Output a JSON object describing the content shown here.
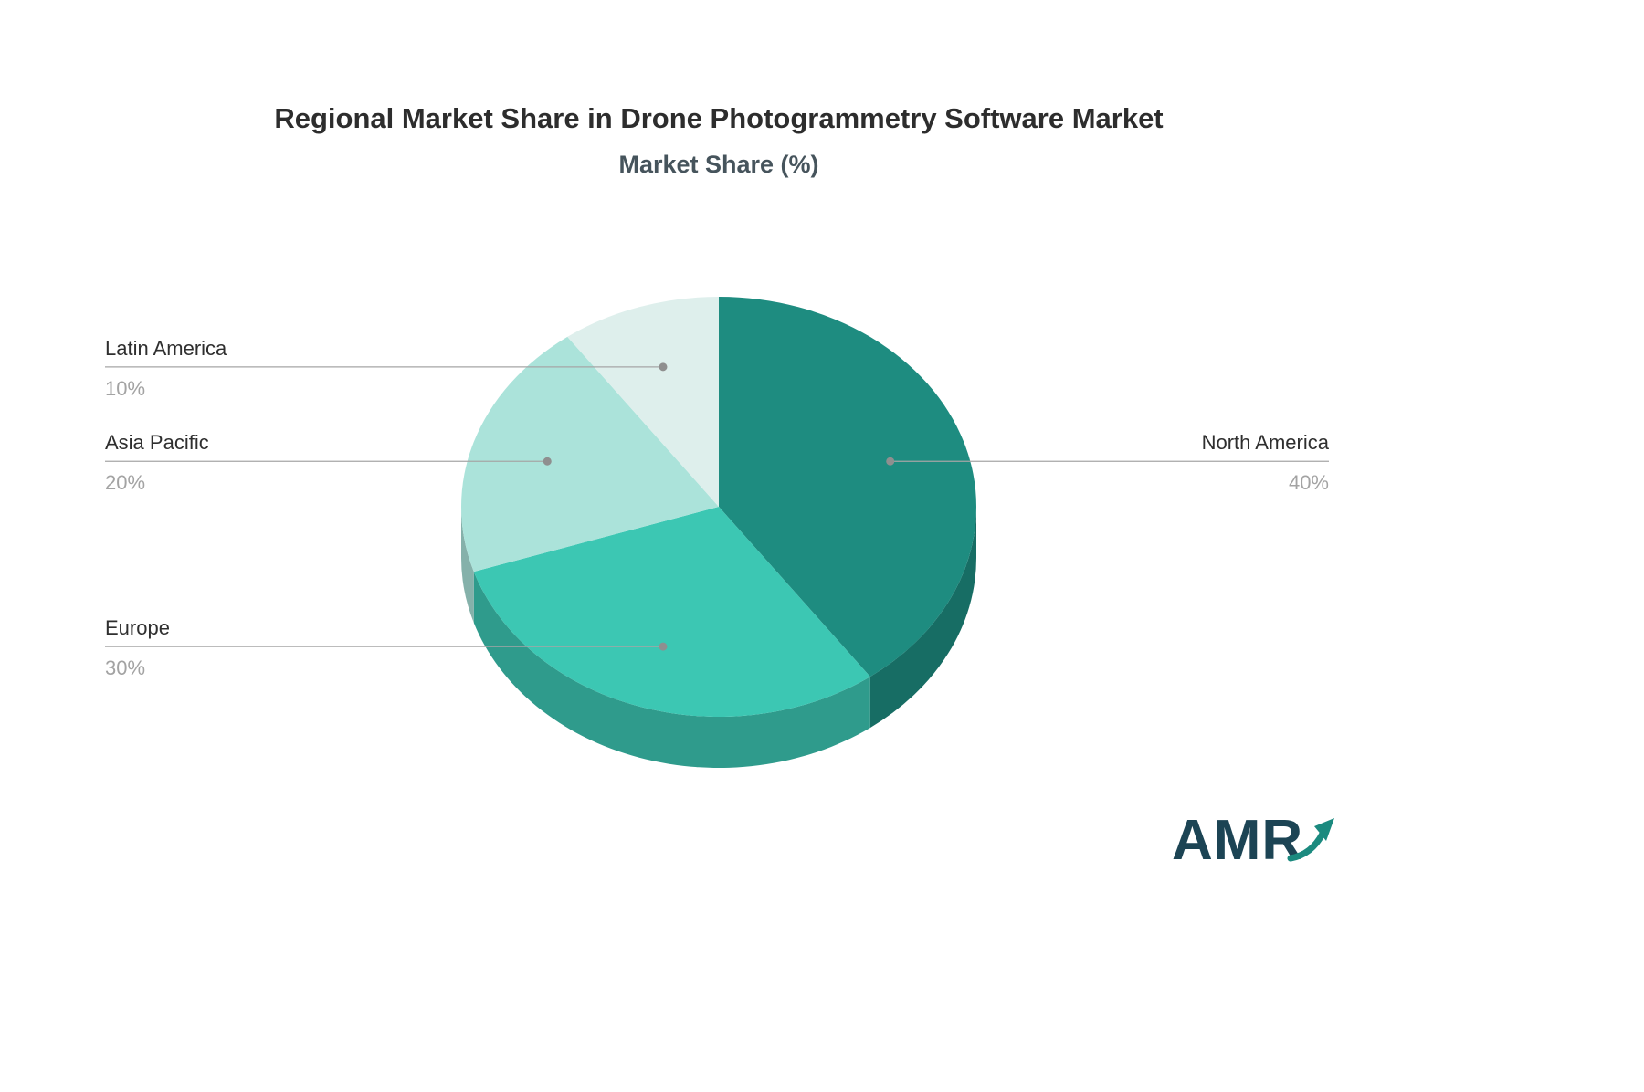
{
  "chart_data": {
    "type": "pie",
    "effect": "3d",
    "title": "Regional Market Share in Drone Photogrammetry Software Market",
    "subtitle": "Market Share (%)",
    "unit": "%",
    "legend_position": "none",
    "slices": [
      {
        "label": "North America",
        "value": 40,
        "pct": "40%",
        "color": "#1e8c80",
        "side": "right"
      },
      {
        "label": "Europe",
        "value": 30,
        "pct": "30%",
        "color": "#3cc7b3",
        "side": "left"
      },
      {
        "label": "Asia Pacific",
        "value": 20,
        "pct": "20%",
        "color": "#abe3da",
        "side": "left"
      },
      {
        "label": "Latin America",
        "value": 10,
        "pct": "10%",
        "color": "#deefec",
        "side": "left"
      }
    ],
    "label_style": {
      "name_color": "#2f2f2f",
      "pct_color": "#a3a3a3",
      "line_color": "#a6a6a6",
      "dot_color": "#8f8f8f"
    }
  },
  "branding": {
    "logo_text": "AMR",
    "logo_color": "#1c4454",
    "arrow_color": "#1b8a7f"
  }
}
